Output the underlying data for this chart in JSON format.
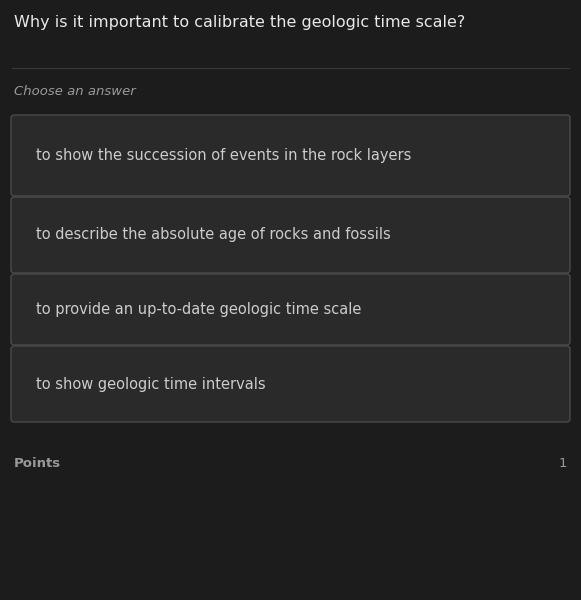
{
  "title": "Why is it important to calibrate the geologic time scale?",
  "subtitle": "Choose an answer",
  "answers": [
    "to show the succession of events in the rock layers",
    "to describe the absolute age of rocks and fossils",
    "to provide an up-to-date geologic time scale",
    "to show geologic time intervals"
  ],
  "points_label": "Points",
  "points_value": "1",
  "bg_color": "#1c1c1c",
  "title_color": "#e8e8e8",
  "subtitle_color": "#999999",
  "answer_text_color": "#cccccc",
  "answer_box_facecolor": "#2a2a2a",
  "answer_box_edgecolor": "#4a4a4a",
  "separator_color": "#3a3a3a",
  "points_color": "#999999",
  "title_fontsize": 11.5,
  "subtitle_fontsize": 9.5,
  "answer_fontsize": 10.5,
  "points_fontsize": 9.5,
  "fig_width": 5.81,
  "fig_height": 6.0,
  "dpi": 100
}
